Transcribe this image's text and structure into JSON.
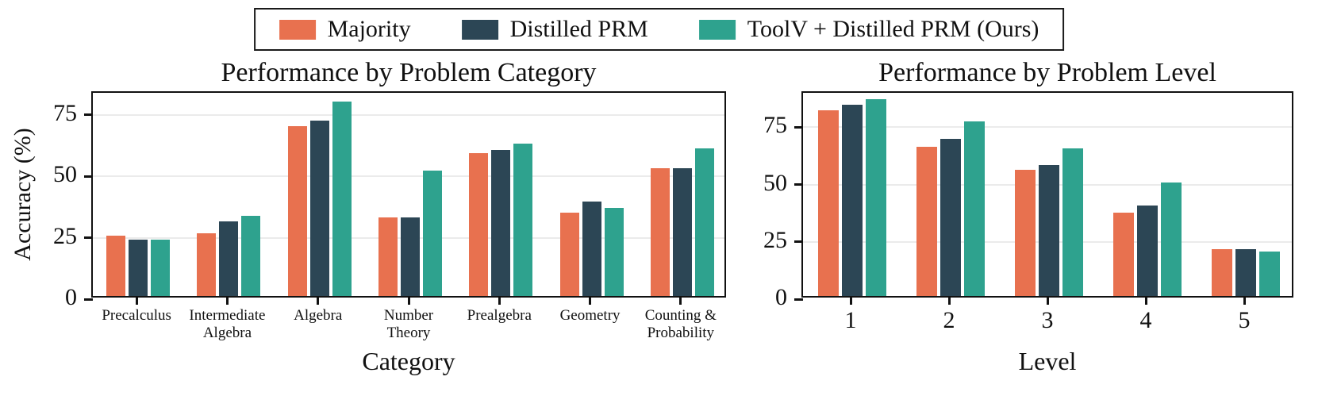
{
  "legend": {
    "items": [
      {
        "label": "Majority",
        "color": "#E8714F"
      },
      {
        "label": "Distilled PRM",
        "color": "#2C4655"
      },
      {
        "label": "ToolV + Distilled PRM (Ours)",
        "color": "#2EA28E"
      }
    ]
  },
  "chart_data": [
    {
      "type": "bar",
      "title": "Performance by Problem Category",
      "xlabel": "Category",
      "ylabel": "Accuracy (%)",
      "categories": [
        "Precalculus",
        "Intermediate Algebra",
        "Algebra",
        "Number Theory",
        "Prealgebra",
        "Geometry",
        "Counting & Probability"
      ],
      "series": [
        {
          "name": "Majority",
          "values": [
            24.5,
            25.5,
            69,
            32,
            58,
            34,
            52
          ]
        },
        {
          "name": "Distilled PRM",
          "values": [
            23,
            30.5,
            71.5,
            32,
            59.5,
            38.5,
            52
          ]
        },
        {
          "name": "ToolV + Distilled PRM (Ours)",
          "values": [
            23,
            32.5,
            79,
            51,
            62,
            36,
            60
          ]
        }
      ],
      "yticks": [
        0,
        25,
        50,
        75
      ],
      "ylim": [
        0,
        84
      ],
      "grid": true,
      "legend_position": "top-center"
    },
    {
      "type": "bar",
      "title": "Performance by Problem Level",
      "xlabel": "Level",
      "ylabel": "",
      "categories": [
        "1",
        "2",
        "3",
        "4",
        "5"
      ],
      "series": [
        {
          "name": "Majority",
          "values": [
            81,
            65,
            55,
            36.5,
            20.5
          ]
        },
        {
          "name": "Distilled PRM",
          "values": [
            83.5,
            68.5,
            57,
            39.5,
            20.5
          ]
        },
        {
          "name": "ToolV + Distilled PRM (Ours)",
          "values": [
            86,
            76,
            64.5,
            49.5,
            19.5
          ]
        }
      ],
      "yticks": [
        0,
        25,
        50,
        75
      ],
      "ylim": [
        0,
        90
      ],
      "grid": true,
      "legend_position": "top-center"
    }
  ]
}
